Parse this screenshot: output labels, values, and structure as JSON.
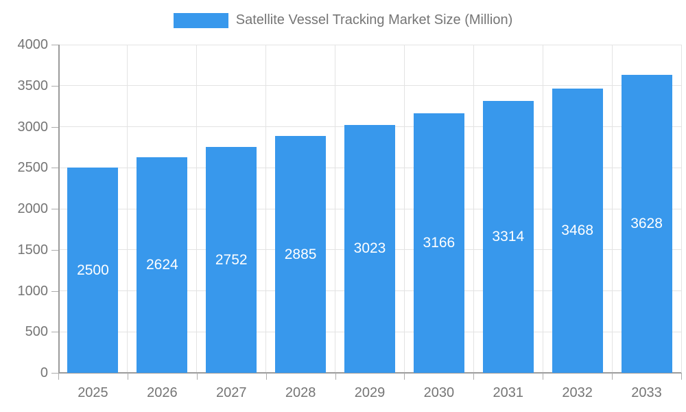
{
  "chart_data": {
    "type": "bar",
    "title": "Satellite Vessel Tracking Market Size (Million)",
    "legend": {
      "label": "Satellite Vessel Tracking Market Size (Million)",
      "swatch_color": "#3898ec",
      "position": "top-center"
    },
    "categories": [
      "2025",
      "2026",
      "2027",
      "2028",
      "2029",
      "2030",
      "2031",
      "2032",
      "2033"
    ],
    "values": [
      2500,
      2624,
      2752,
      2885,
      3023,
      3166,
      3314,
      3468,
      3628
    ],
    "value_labels": [
      "2500",
      "2624",
      "2752",
      "2885",
      "3023",
      "3166",
      "3314",
      "3468",
      "3628"
    ],
    "xlabel": "",
    "ylabel": "",
    "ylim": [
      0,
      4000
    ],
    "yticks": [
      0,
      500,
      1000,
      1500,
      2000,
      2500,
      3000,
      3500,
      4000
    ],
    "grid": true,
    "bar_color": "#3898ec",
    "value_label_color": "#ffffff",
    "axis_text_color": "#757575",
    "gridline_color": "#e3e3e3",
    "axis_line_color": "#9b9b9b"
  }
}
